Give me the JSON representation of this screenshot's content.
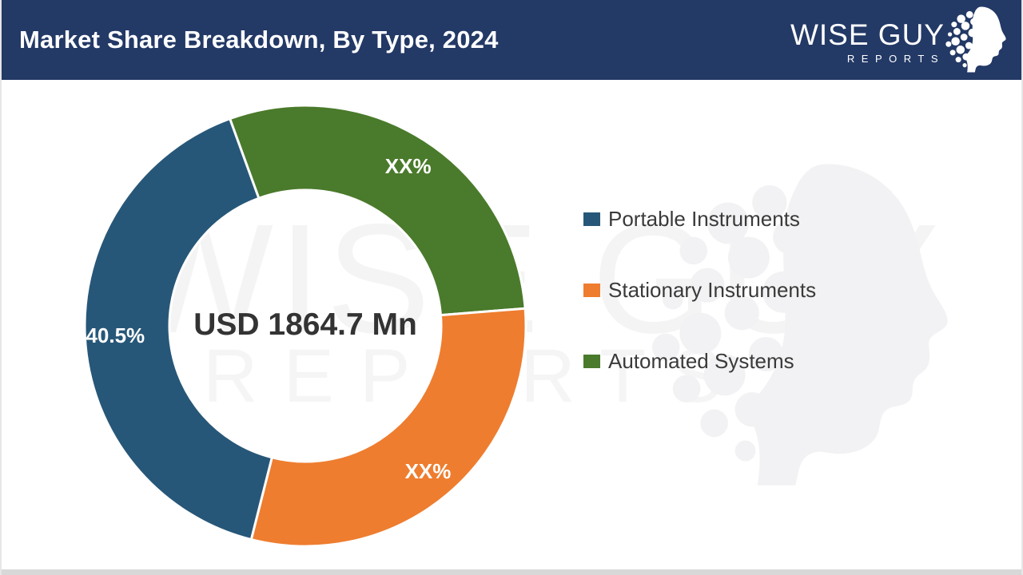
{
  "header": {
    "title": "Market Share Breakdown, By Type, 2024",
    "logo": {
      "brand_line1": "WISE GUY",
      "brand_line2": "REPORTS"
    }
  },
  "chart_data": {
    "type": "pie",
    "variant": "donut",
    "title": "Market Share Breakdown, By Type, 2024",
    "center_label": "USD 1864.7 Mn",
    "unit": "%",
    "start_angle_deg": -20,
    "legend_position": "right",
    "label_color": "#FFFFFF",
    "segments": [
      {
        "name": "Automated Systems",
        "value": 29.3,
        "display_label": "XX%",
        "color": "#4A7A2B"
      },
      {
        "name": "Stationary Instruments",
        "value": 30.2,
        "display_label": "XX%",
        "color": "#EE7D2F"
      },
      {
        "name": "Portable Instruments",
        "value": 40.5,
        "display_label": "40.5%",
        "color": "#275778"
      }
    ]
  },
  "legend": {
    "items": [
      {
        "label": "Portable Instruments",
        "color": "#275778"
      },
      {
        "label": "Stationary Instruments",
        "color": "#EE7D2F"
      },
      {
        "label": "Automated Systems",
        "color": "#4A7A2B"
      }
    ]
  },
  "watermark": {
    "line1": "WISE GUY",
    "line2": "REPORTS"
  },
  "colors": {
    "header_bg": "#233966",
    "bottom_bar": "#D8D8D8"
  }
}
